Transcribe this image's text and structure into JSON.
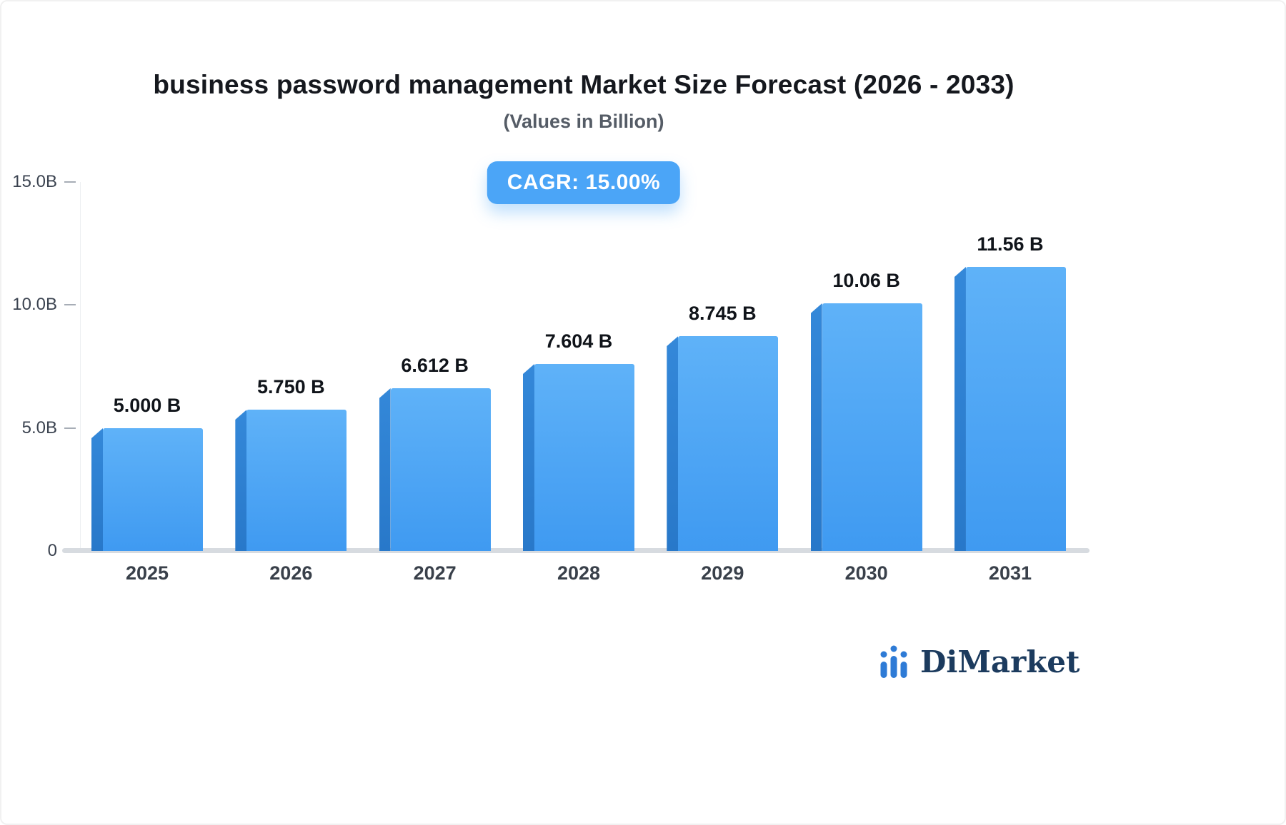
{
  "title": "business password management Market Size Forecast (2026 - 2033)",
  "subtitle": "(Values in Billion)",
  "cagr_badge": "CAGR: 15.00%",
  "logo_text": "DiMarket",
  "chart_data": {
    "type": "bar",
    "title": "business password management Market Size Forecast (2026 - 2033)",
    "subtitle": "(Values in Billion)",
    "cagr": "15.00%",
    "categories": [
      "2025",
      "2026",
      "2027",
      "2028",
      "2029",
      "2030",
      "2031"
    ],
    "values": [
      5.0,
      5.75,
      6.612,
      7.604,
      8.745,
      10.06,
      11.56
    ],
    "value_labels": [
      "5.000 B",
      "5.750 B",
      "6.612 B",
      "7.604 B",
      "8.745 B",
      "10.06 B",
      "11.56 B"
    ],
    "xlabel": "",
    "ylabel": "",
    "ylim": [
      0,
      15
    ],
    "yticks": [
      {
        "label": "0",
        "value": 0
      },
      {
        "label": "5.0B",
        "value": 5
      },
      {
        "label": "10.0B",
        "value": 10
      },
      {
        "label": "15.0B",
        "value": 15
      }
    ],
    "grid": false,
    "legend": false,
    "bar_color": "#3F9AF1",
    "bar_side_color": "#2878C9",
    "accent_color": "#4BA5F7"
  }
}
